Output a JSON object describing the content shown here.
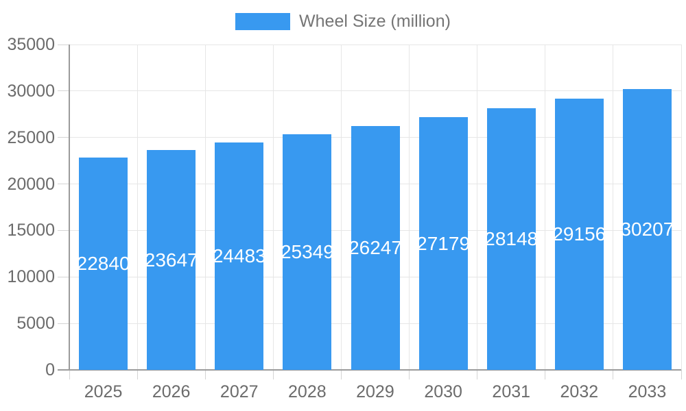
{
  "chart_data": {
    "type": "bar",
    "title": "",
    "legend_position": "top",
    "categories": [
      "2025",
      "2026",
      "2027",
      "2028",
      "2029",
      "2030",
      "2031",
      "2032",
      "2033"
    ],
    "series": [
      {
        "name": "Wheel Size (million)",
        "values": [
          22840,
          23647,
          24483,
          25349,
          26247,
          27179,
          28148,
          29156,
          30207
        ],
        "color": "#3899f0"
      }
    ],
    "ylim": [
      0,
      35000
    ],
    "yticks": [
      0,
      5000,
      10000,
      15000,
      20000,
      25000,
      30000,
      35000
    ],
    "grid": true,
    "value_labels_inside_bars": true,
    "value_label_color": "#ffffff",
    "background_color": "#ffffff"
  }
}
